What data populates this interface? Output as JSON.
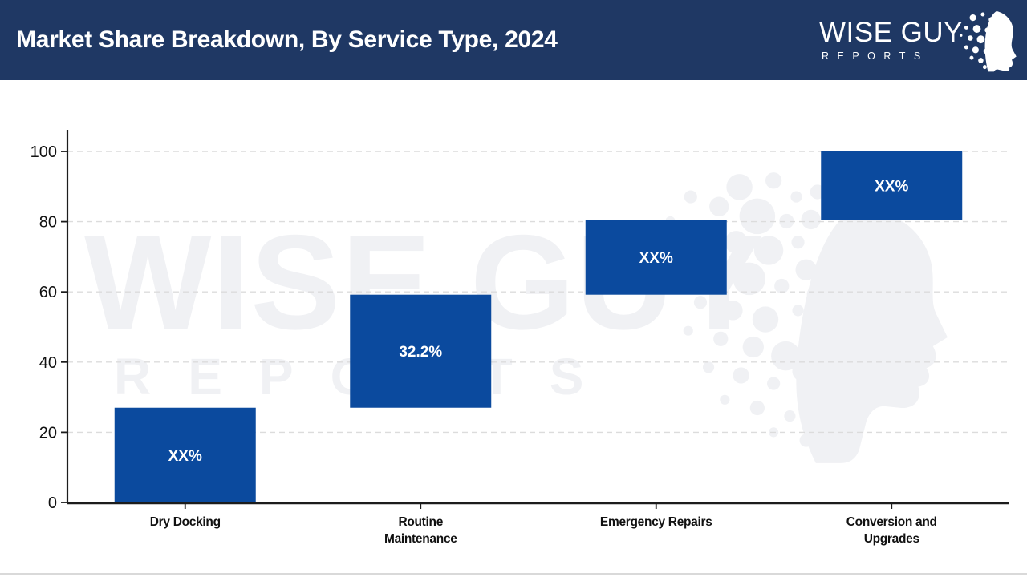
{
  "header": {
    "title": "Market Share Breakdown, By Service Type, 2024",
    "logo": {
      "line1": "WISE GUY",
      "line2": "REPORTS"
    }
  },
  "watermark": {
    "line1": "WISE GUY",
    "line2": "REPORTS"
  },
  "chart_data": {
    "type": "bar",
    "subtype": "waterfall",
    "title": "Market Share Breakdown, By Service Type, 2024",
    "categories": [
      "Dry Docking",
      "Routine Maintenance",
      "Emergency Repairs",
      "Conversion and Upgrades"
    ],
    "segments": [
      {
        "category": "Dry Docking",
        "value": 27.0,
        "start": 0,
        "end": 27,
        "label": "XX%"
      },
      {
        "category": "Routine Maintenance",
        "value": 32.2,
        "start": 27,
        "end": 59.2,
        "label": "32.2%"
      },
      {
        "category": "Emergency Repairs",
        "value": 21.3,
        "start": 59.2,
        "end": 80.5,
        "label": "XX%"
      },
      {
        "category": "Conversion and Upgrades",
        "value": 19.5,
        "start": 80.5,
        "end": 100,
        "label": "XX%"
      }
    ],
    "xlabel": "",
    "ylabel": "",
    "yticks": [
      0,
      20,
      40,
      60,
      80,
      100
    ],
    "ylim": [
      0,
      105
    ],
    "grid": "dashed-horizontal",
    "legend": "none",
    "bar_color": "#0b4a9e",
    "bar_label_color": "#ffffff",
    "axis_color": "#1c1c1c",
    "grid_color": "#dcdcdc",
    "header_color": "#1f3864",
    "watermark_color": "#f0f1f4"
  }
}
